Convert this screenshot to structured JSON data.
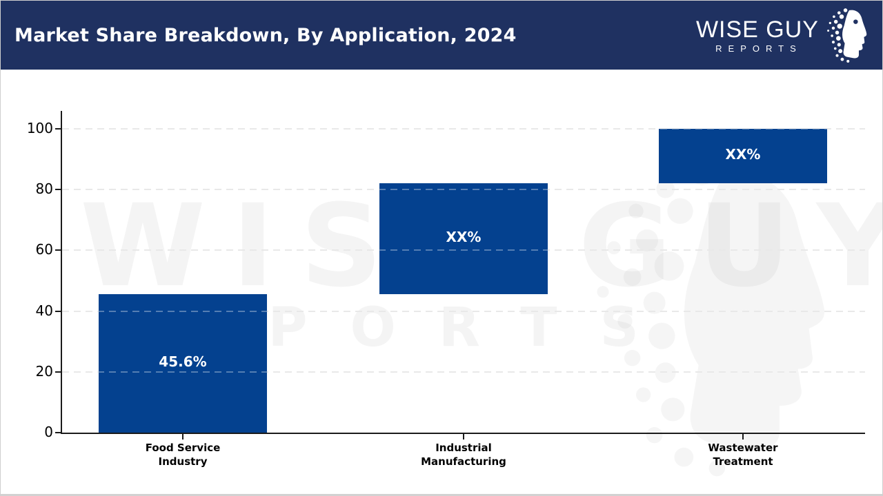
{
  "header": {
    "title": "Market Share Breakdown, By Application, 2024",
    "logo": {
      "line1": "WISE GUY",
      "line2": "REPORTS"
    }
  },
  "watermark": {
    "line1": "WISE GUY",
    "line2": "REPORTS"
  },
  "chart_data": {
    "type": "bar",
    "subtype": "waterfall",
    "title": "Market Share Breakdown, By Application, 2024",
    "categories": [
      "Food Service Industry",
      "Industrial Manufacturing",
      "Wastewater Treatment"
    ],
    "category_lines": [
      [
        "Food Service",
        "Industry"
      ],
      [
        "Industrial",
        "Manufacturing"
      ],
      [
        "Wastewater",
        "Treatment"
      ]
    ],
    "segments": [
      {
        "category": "Food Service Industry",
        "start": 0,
        "end": 45.6,
        "label": "45.6%"
      },
      {
        "category": "Industrial Manufacturing",
        "start": 45.6,
        "end": 82.1,
        "label": "XX%"
      },
      {
        "category": "Wastewater Treatment",
        "start": 82.1,
        "end": 100,
        "label": "XX%"
      }
    ],
    "xlabel": "",
    "ylabel": "",
    "ylim": [
      0,
      100
    ],
    "yticks": [
      0,
      20,
      40,
      60,
      80,
      100
    ],
    "grid": "horizontal dashed",
    "legend": "none",
    "bar_color": "#04418f",
    "header_color": "#1f3161"
  }
}
